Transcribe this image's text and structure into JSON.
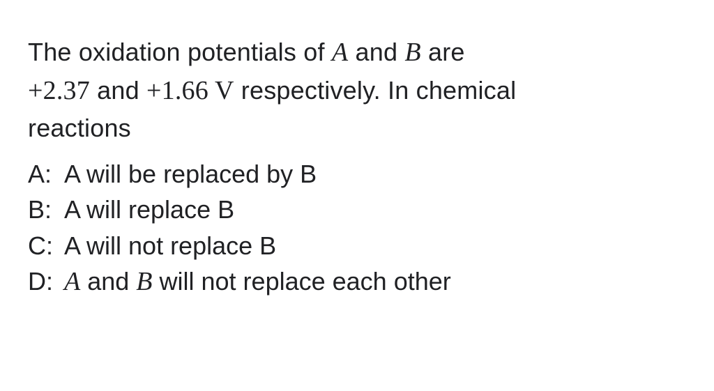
{
  "question": {
    "line1_pre": "The oxidation potentials of ",
    "var_A": "A",
    "line1_mid": " and ",
    "var_B": "B",
    "line1_post": " are",
    "line2_val1": "+2.37",
    "line2_and": " and ",
    "line2_val2": "+1.66",
    "line2_unit": " V",
    "line2_post": " respectively. In chemical",
    "line3": "reactions"
  },
  "options": {
    "A": {
      "label": "A:",
      "text": "A will be replaced by B"
    },
    "B": {
      "label": "B:",
      "text": "A will replace B"
    },
    "C": {
      "label": "C:",
      "text": "A will not replace B"
    },
    "D": {
      "label": "D:",
      "pre": "",
      "var_A": "A",
      "mid": " and ",
      "var_B": "B",
      "post": " will not replace each other"
    }
  },
  "style": {
    "font_color": "#202124",
    "background": "#ffffff",
    "body_fontsize": 36,
    "math_fontsize": 38
  }
}
